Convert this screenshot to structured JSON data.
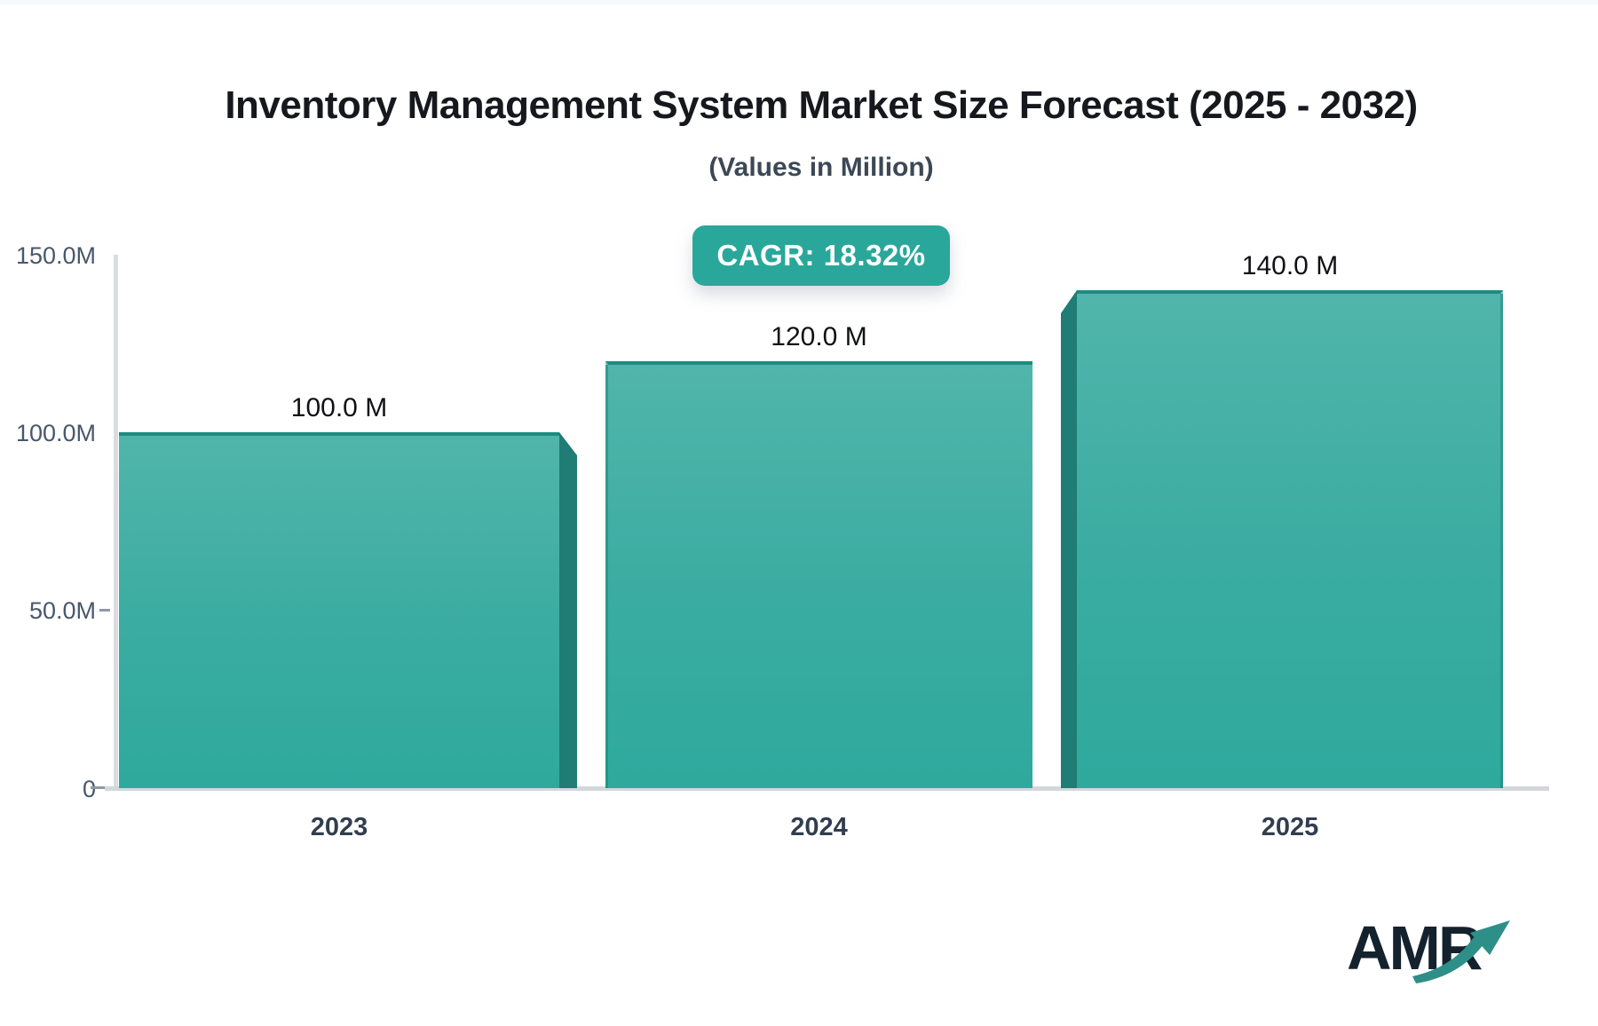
{
  "chart": {
    "title": "Inventory Management System Market Size Forecast (2025 - 2032)",
    "subtitle": "(Values in Million)",
    "cagr_badge": "CAGR: 18.32%"
  },
  "chart_data": {
    "type": "bar",
    "title": "Inventory Management System Market Size Forecast (2025 - 2032)",
    "subtitle": "(Values in Million)",
    "unit": "Million (M)",
    "cagr_percent": 18.32,
    "categories": [
      "2023",
      "2024",
      "2025"
    ],
    "values": [
      100.0,
      120.0,
      140.0
    ],
    "value_labels": [
      "100.0 M",
      "120.0 M",
      "140.0 M"
    ],
    "ylim": [
      0,
      150
    ],
    "ytick_labels": [
      "150.0M",
      "100.0M",
      "50.0M",
      "0"
    ],
    "grid": "off",
    "legend": "none",
    "bar_style": "3d-beveled-gradient-teal"
  },
  "colors": {
    "accent_teal": "#2aa79b",
    "bar_gradient_top": "#51b5ab",
    "bar_gradient_bottom": "#2fa99d",
    "bar_side_shadow": "#1f7d75",
    "bar_top_edge": "#1d8b81",
    "axis_line": "#d6dade",
    "title_text": "#16181d",
    "subtitle_text": "#3c4856",
    "tick_label": "#47586c",
    "badge_text": "#ffffff",
    "logo_navy": "#14222e",
    "logo_teal": "#2e8f88"
  },
  "branding": {
    "logo_text": "AMR"
  }
}
